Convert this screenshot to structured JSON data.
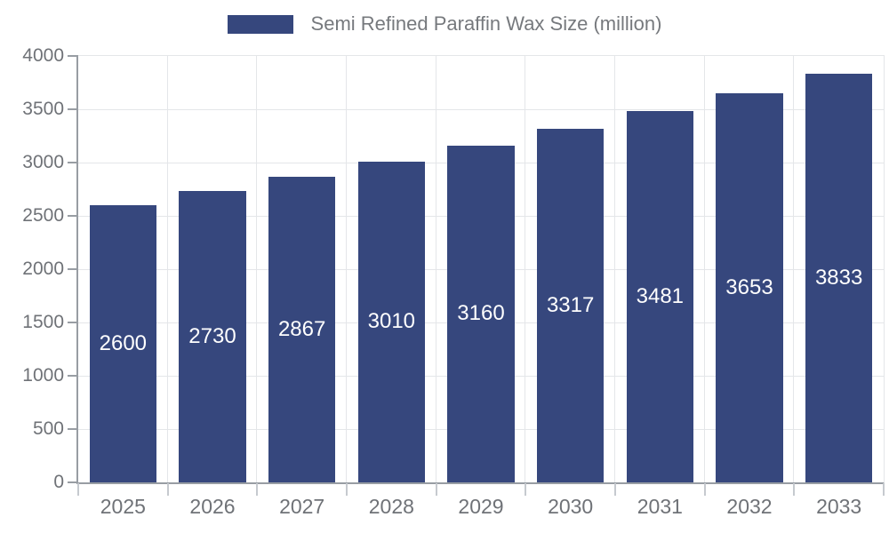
{
  "chart_data": {
    "type": "bar",
    "title": "Semi Refined Paraffin Wax Size (million)",
    "legend": [
      {
        "label": "Semi Refined Paraffin Wax Size (million)"
      }
    ],
    "legend_position": "top-center",
    "categories": [
      "2025",
      "2026",
      "2027",
      "2028",
      "2029",
      "2030",
      "2031",
      "2032",
      "2033"
    ],
    "series": [
      {
        "name": "Semi Refined Paraffin Wax Size (million)",
        "values": [
          2600,
          2730,
          2867,
          3010,
          3160,
          3317,
          3481,
          3653,
          3833
        ]
      }
    ],
    "xlabel": "",
    "ylabel": "",
    "ylim": [
      0,
      4000
    ],
    "yticks": [
      0,
      500,
      1000,
      1500,
      2000,
      2500,
      3000,
      3500,
      4000
    ],
    "grid": true,
    "bar_labels_shown": true,
    "colors": {
      "bar": "#36477d",
      "bar_label": "#ffffff",
      "axis_line": "#989da3",
      "x_tick": "#c6cacf",
      "grid": "#e4e6e9",
      "axis_text": "#6f7277",
      "legend_text": "#76797d",
      "background": "#ffffff"
    }
  }
}
